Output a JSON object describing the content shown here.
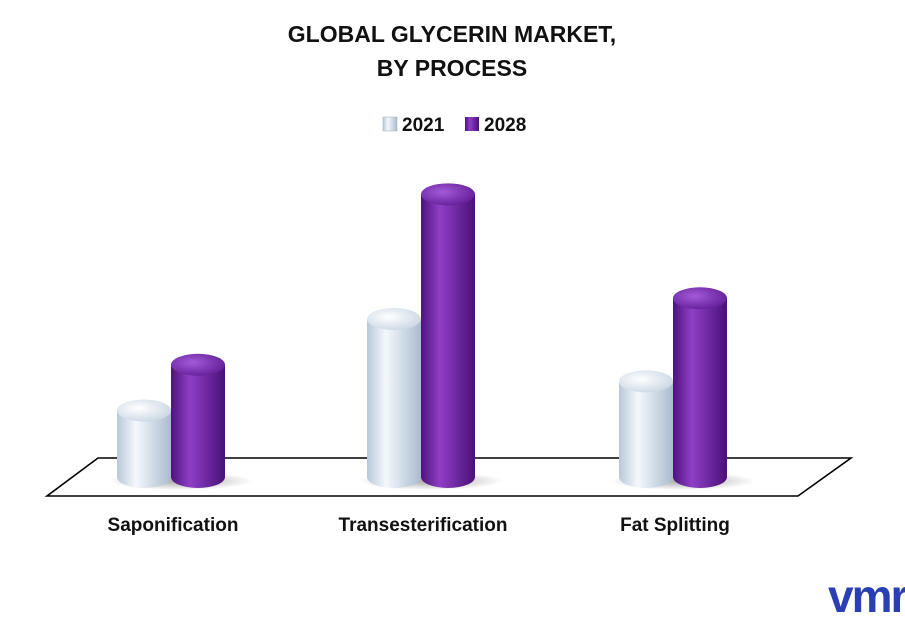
{
  "chart_data": {
    "type": "bar",
    "title_lines": [
      "GLOBAL GLYCERIN MARKET,",
      "BY PROCESS"
    ],
    "categories": [
      "Saponification",
      "Transesterification",
      "Fat Splitting"
    ],
    "series": [
      {
        "name": "2021",
        "color": "#dbe6f2",
        "values": [
          1.6,
          3.8,
          2.3
        ]
      },
      {
        "name": "2028",
        "color": "#7a2fb0",
        "values": [
          2.7,
          6.8,
          4.3
        ]
      }
    ],
    "legend_position": "top-center",
    "ylim": [
      0,
      7
    ],
    "grid": false
  },
  "logo": {
    "text": "vmr",
    "color": "#2b3fb5"
  }
}
